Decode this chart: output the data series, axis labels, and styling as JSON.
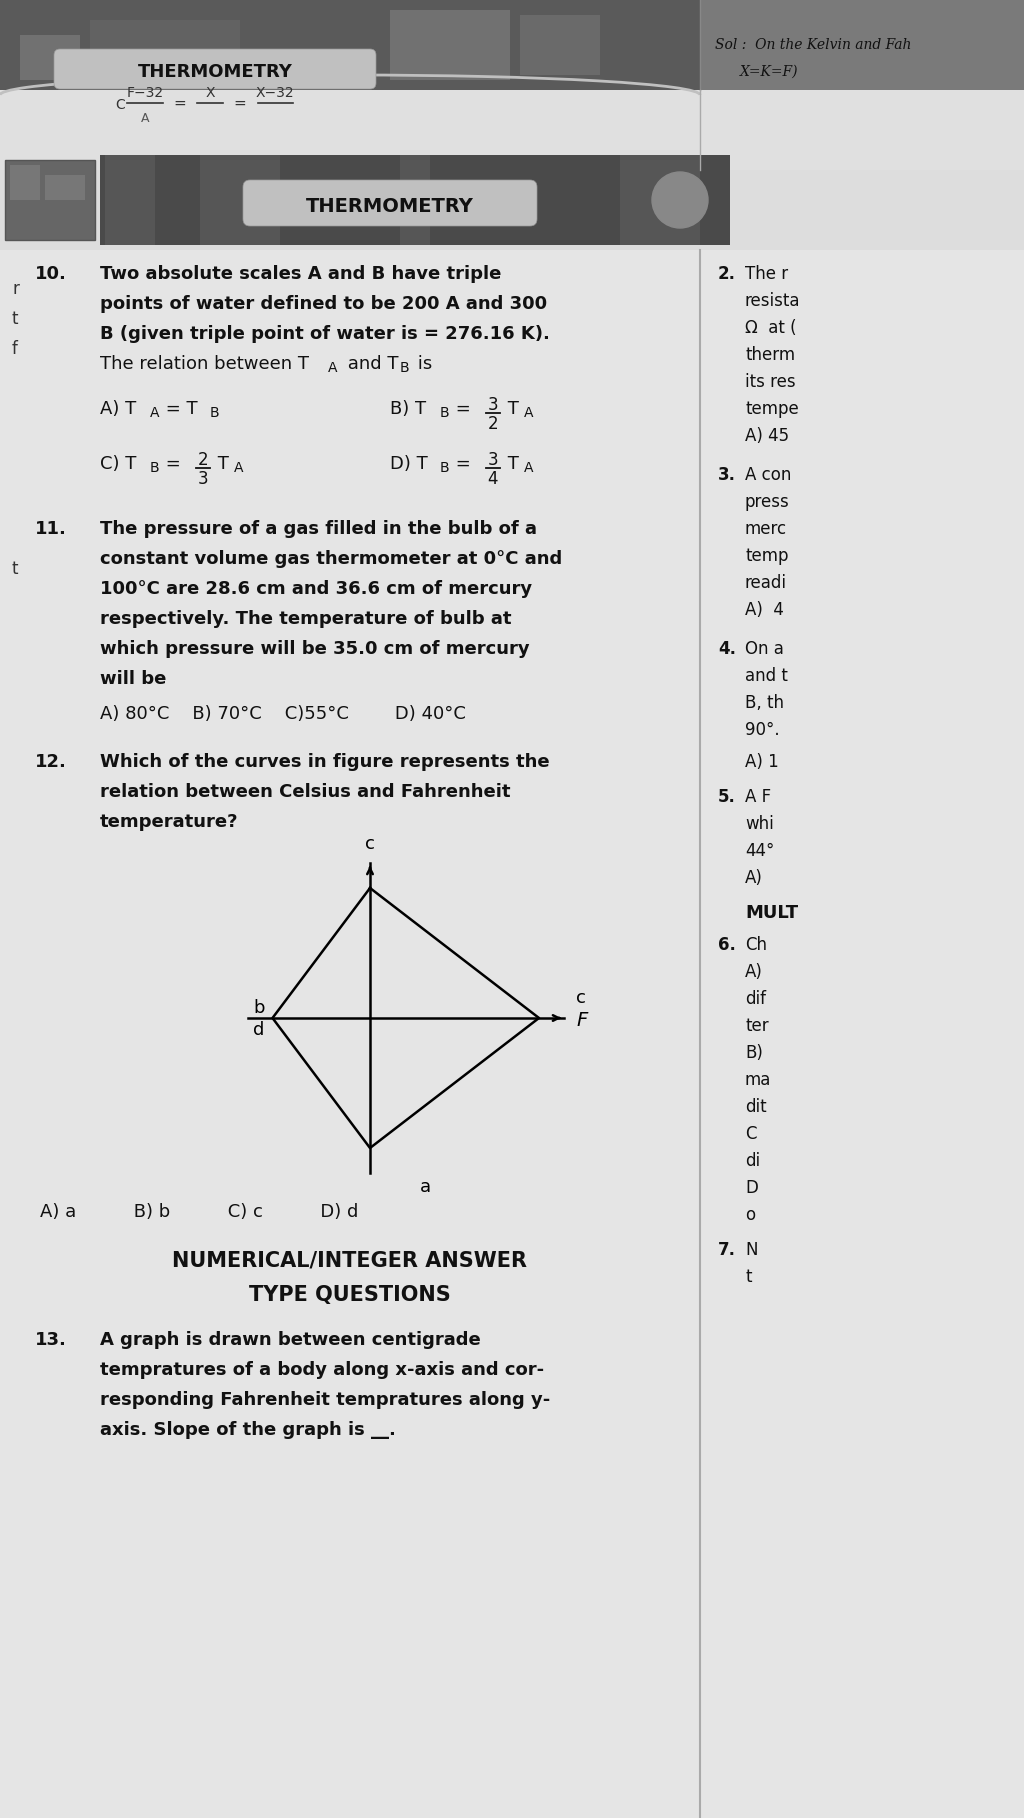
{
  "page_bg": "#c8c8c8",
  "content_bg": "#e8e8e8",
  "header_dark": "#3a3a3a",
  "header_pill_color": "#b8b8b8",
  "divider_color": "#999999",
  "text_color": "#111111",
  "header_text": "THERMOMETRY",
  "sol_line1": "Sol :  On the Kelvin and Fah",
  "sol_line2": "X=K=F)",
  "formula_line": "C    F−32   X   X−32",
  "header2_text": "THERMOMETRY",
  "q10_num": "10.",
  "q10_lines": [
    "Two absolute scales A and B have triple",
    "points of water defined to be 200 A and 300",
    "B (given triple point of water is = 276.16 K)."
  ],
  "q10_rel": "The relation between T",
  "q10_A_sub": "A",
  "q10_and_TB": " and T",
  "q10_B_sub": "B",
  "q10_is": " is",
  "optA_pre": "A) T",
  "optA_Asub": "A",
  "optA_eq": " = T",
  "optA_Bsub": "B",
  "optB_pre": "B) T",
  "optB_Bsub": "B",
  "optB_eq": " = ",
  "optB_num": "3",
  "optB_den": "2",
  "optB_var": " T",
  "optB_Asub": "A",
  "optC_pre": "C) T",
  "optC_Bsub": "B",
  "optC_eq": " = ",
  "optC_num": "2",
  "optC_den": "3",
  "optC_var": " T",
  "optC_Asub": "A",
  "optD_pre": "D) T",
  "optD_Bsub": "B",
  "optD_eq": " = ",
  "optD_num": "3",
  "optD_den": "4",
  "optD_var": " T",
  "optD_Asub": "A",
  "q11_num": "11.",
  "q11_lines": [
    "The pressure of a gas filled in the bulb of a",
    "constant volume gas thermometer at 0°C and",
    "100°C are 28.6 cm and 36.6 cm of mercury",
    "respectively. The temperature of bulb at",
    "which pressure will be 35.0 cm of mercury",
    "will be"
  ],
  "q11_opts": "A) 80°C    B) 70°C    C)55°C        D) 40°C",
  "q12_num": "12.",
  "q12_lines": [
    "Which of the curves in figure represents the",
    "relation between Celsius and Fahrenheit",
    "temperature?"
  ],
  "q12_opts": "A) a          B) b          C) c          D) d",
  "num_header1": "NUMERICAL/INTEGER ANSWER",
  "num_header2": "TYPE QUESTIONS",
  "q13_num": "13.",
  "q13_lines": [
    "A graph is drawn between centigrade",
    "tempratures of a body along x-axis and cor-",
    "responding Fahrenheit tempratures along y-",
    "axis. Slope of the graph is __."
  ],
  "rc_q2_label": "2.",
  "rc_q2_lines": [
    "The r",
    "resista",
    "Ω  at (",
    "therm",
    "its res",
    "tempe",
    "A) 45"
  ],
  "rc_q3_label": "3.",
  "rc_q3_lines": [
    "A con",
    "press",
    "merc",
    "temp",
    "readi",
    "A)  4"
  ],
  "rc_q4_label": "4.",
  "rc_q4_lines": [
    "On a",
    "and t",
    "B, th",
    "90°."
  ],
  "rc_q4b": "A) 1",
  "rc_q5_label": "5.",
  "rc_q5_lines": [
    "A F",
    "whi",
    "44°",
    "A)"
  ],
  "rc_mult": "MULT",
  "rc_q6_label": "6.",
  "rc_q6_lines": [
    "Ch",
    "A)",
    "dif",
    "ter",
    "B)",
    "ma",
    "dit",
    "C",
    "di",
    "D",
    "o"
  ],
  "rc_q7_label": "7.",
  "rc_q7_lines": [
    "N",
    "t"
  ]
}
